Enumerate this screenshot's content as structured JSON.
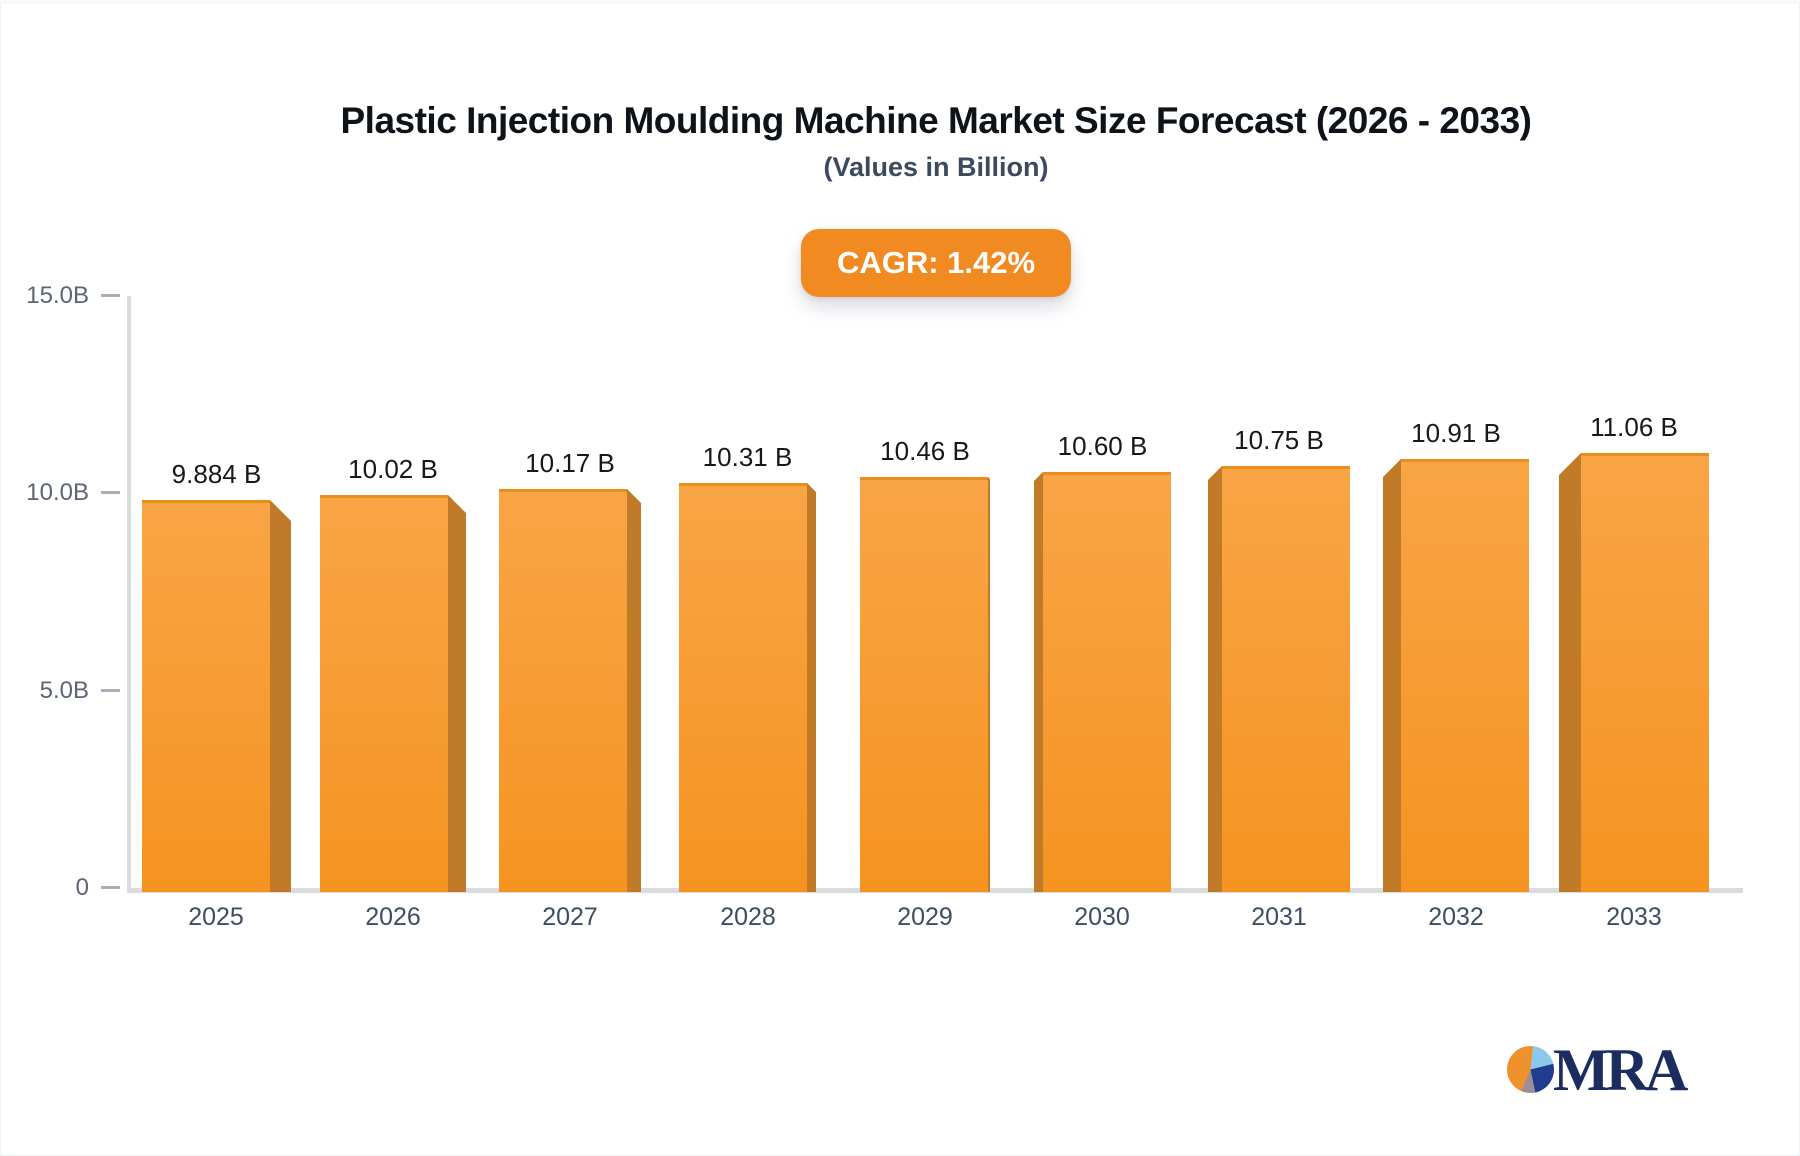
{
  "header": {
    "title": "Plastic Injection Moulding Machine Market Size Forecast (2026 - 2033)",
    "subtitle": "(Values in Billion)",
    "cagr_label": "CAGR: 1.42%"
  },
  "chart_data": {
    "type": "bar",
    "title": "Plastic Injection Moulding Machine Market Size Forecast (2026 - 2033)",
    "subtitle": "(Values in Billion)",
    "categories": [
      "2025",
      "2026",
      "2027",
      "2028",
      "2029",
      "2030",
      "2031",
      "2032",
      "2033"
    ],
    "values": [
      9.884,
      10.02,
      10.17,
      10.31,
      10.46,
      10.6,
      10.75,
      10.91,
      11.06
    ],
    "value_labels": [
      "9.884 B",
      "10.02 B",
      "10.17 B",
      "10.31 B",
      "10.46 B",
      "10.60 B",
      "10.75 B",
      "10.91 B",
      "11.06 B"
    ],
    "unit": "Billion",
    "cagr": "1.42%",
    "ylim": [
      0,
      15
    ],
    "yticks": [
      {
        "value": 0,
        "label": "0"
      },
      {
        "value": 5,
        "label": "5.0B"
      },
      {
        "value": 10,
        "label": "10.0B"
      },
      {
        "value": 15,
        "label": "15.0B"
      }
    ],
    "grid": "off",
    "legend": "none",
    "bar_style": "3d-column"
  },
  "logo": {
    "text": "MRA"
  },
  "colors": {
    "bar_top": "#f8a546",
    "bar_bottom": "#f69320",
    "bar_side": "#c07a28",
    "bar_edge": "#ea8d1d",
    "badge_bg": "#f18a20",
    "badge_text": "#ffffff",
    "title": "#0e1319",
    "subtitle": "#3b4a5e",
    "axis_label": "#5c6573",
    "x_label": "#3d4d63",
    "value_label": "#15181c",
    "axis_line": "#d9dcdf",
    "tick": "#a8afba",
    "logo_navy": "#1b2d5f",
    "pie_orange": "#f0922b",
    "pie_lightblue": "#8ec7ec",
    "pie_navy": "#1f3d8c",
    "pie_gray": "#9a8f96"
  }
}
